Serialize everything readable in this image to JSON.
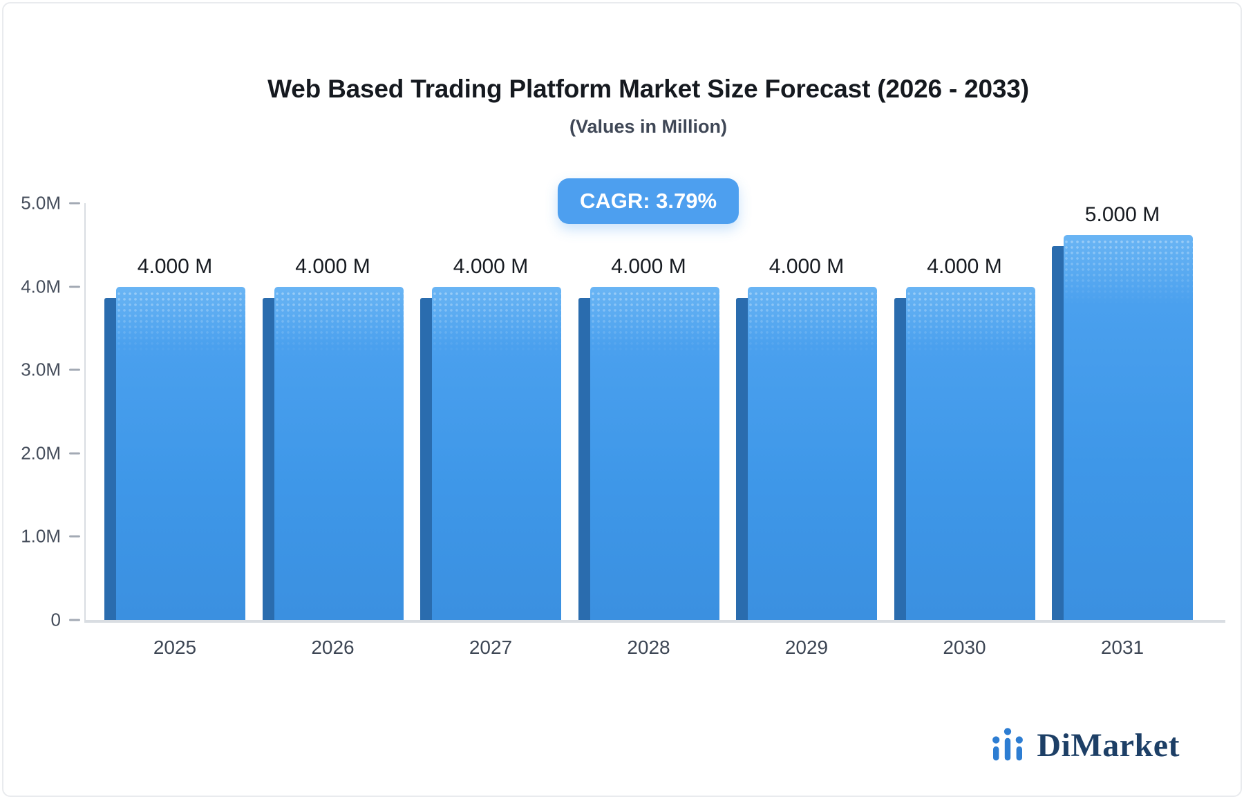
{
  "chart_data": {
    "type": "bar",
    "title": "Web Based Trading Platform Market Size Forecast (2026 - 2033)",
    "subtitle": "(Values in Million)",
    "cagr_label": "CAGR: 3.79%",
    "categories": [
      "2025",
      "2026",
      "2027",
      "2028",
      "2029",
      "2030",
      "2031"
    ],
    "values": [
      4,
      4,
      4,
      4,
      4,
      4,
      5
    ],
    "value_labels": [
      "4.000 M",
      "4.000 M",
      "4.000 M",
      "4.000 M",
      "4.000 M",
      "4.000 M",
      "5.000 M"
    ],
    "unit": "Million",
    "xlabel": "",
    "ylabel": "",
    "ylim": [
      0,
      5
    ],
    "ytick_values": [
      0,
      1,
      2,
      3,
      4,
      5
    ],
    "ytick_labels": [
      "0",
      "1.0M",
      "2.0M",
      "3.0M",
      "4.0M",
      "5.0M"
    ],
    "grid": false,
    "legend": false,
    "colors": {
      "bar": "#3E97E8",
      "bar_light": "#6AB5F4",
      "bar_edge": "#2A6CAE",
      "badge_bg": "#4D9FEF",
      "badge_text": "#FFFFFF",
      "axis": "#D9DDE2",
      "tick": "#444C5A",
      "title": "#15191F",
      "subtitle": "#3F4756",
      "logo_text": "#1D3F66",
      "logo_icon": "#2D7DD2",
      "frame": "#E9EBEE"
    }
  },
  "branding": {
    "logo_text": "DiMarket"
  }
}
